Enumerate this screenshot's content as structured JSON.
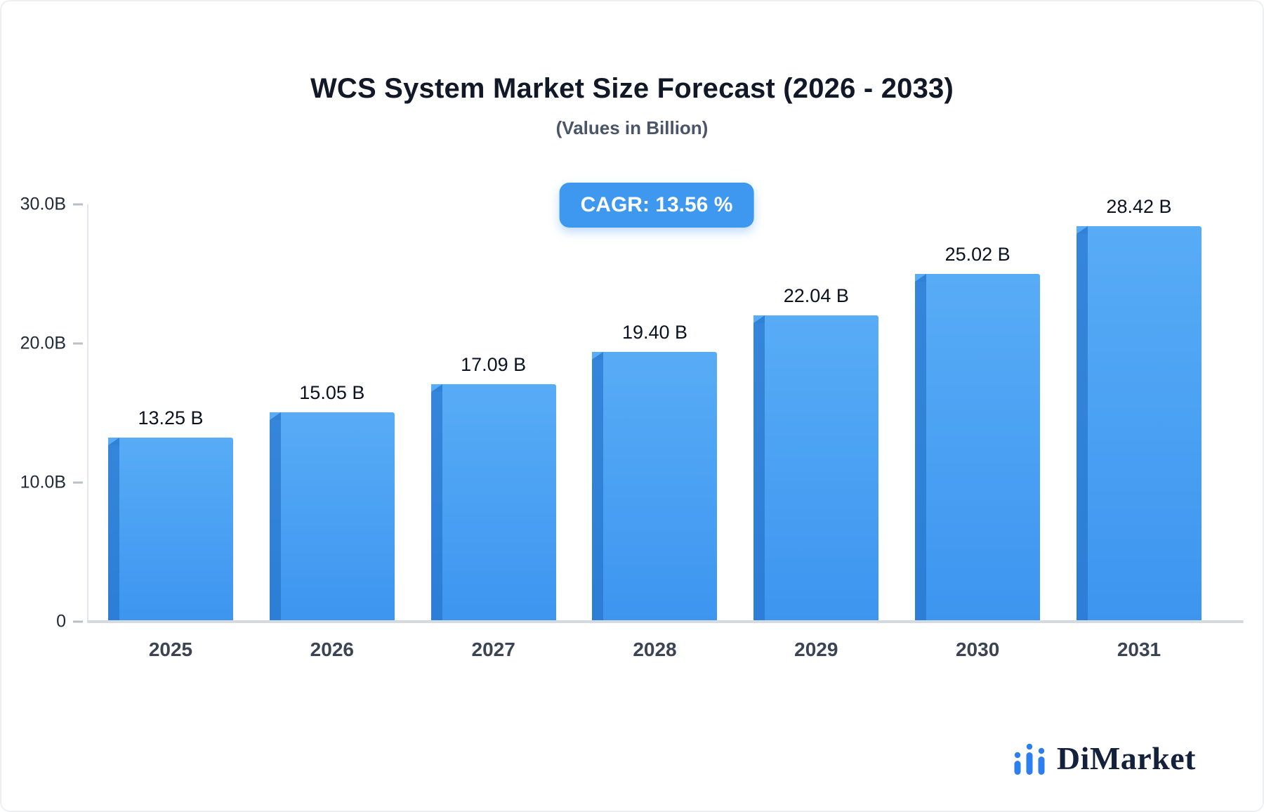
{
  "chart_data": {
    "type": "bar",
    "title": "WCS System Market Size Forecast (2026 - 2033)",
    "subtitle": "(Values in Billion)",
    "cagr_badge": "CAGR: 13.56 %",
    "categories": [
      "2025",
      "2026",
      "2027",
      "2028",
      "2029",
      "2030",
      "2031"
    ],
    "values": [
      13.25,
      15.05,
      17.09,
      19.4,
      22.04,
      25.02,
      28.42
    ],
    "bar_labels": [
      "13.25 B",
      "15.05 B",
      "17.09 B",
      "19.40 B",
      "22.04 B",
      "25.02 B",
      "28.42 B"
    ],
    "ylim": [
      0,
      30
    ],
    "yticks": [
      {
        "value": 30,
        "label": "30.0B"
      },
      {
        "value": 20,
        "label": "20.0B"
      },
      {
        "value": 10,
        "label": "10.0B"
      },
      {
        "value": 0,
        "label": "0"
      }
    ],
    "grid": false,
    "legend": false
  },
  "branding": {
    "logo_text": "DiMarket"
  },
  "colors": {
    "bar_face_top": "#58acf6",
    "bar_face_bottom": "#3d95ef",
    "bar_side": "#2c7ed6",
    "badge_bg": "#3f98f0",
    "axis_line": "#d5dae1",
    "title": "#111827",
    "subtitle": "#4a5568",
    "logo": "#14213d",
    "logo_icon": "#2d7ff0"
  }
}
